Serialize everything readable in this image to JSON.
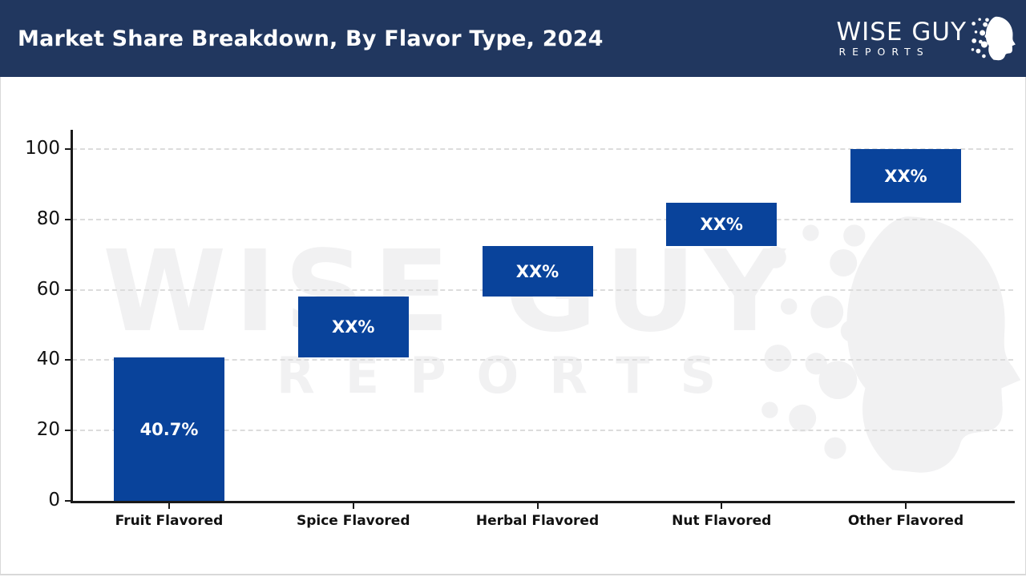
{
  "header": {
    "title": "Market Share Breakdown, By Flavor Type, 2024",
    "bg_color": "#21375f"
  },
  "logo": {
    "line1": "WISE GUY",
    "line2": "REPORTS"
  },
  "watermark": {
    "line1": "WISE GUY",
    "line2": "REPORTS"
  },
  "chart_data": {
    "type": "bar",
    "variant": "floating-waterfall",
    "title": "Market Share Breakdown, By Flavor Type, 2024",
    "categories": [
      "Fruit Flavored",
      "Spice Flavored",
      "Herbal Flavored",
      "Nut Flavored",
      "Other Flavored"
    ],
    "segments": [
      {
        "category": "Fruit Flavored",
        "start": 0,
        "end": 40.7,
        "label": "40.7%"
      },
      {
        "category": "Spice Flavored",
        "start": 40.7,
        "end": 58,
        "label": "XX%"
      },
      {
        "category": "Herbal Flavored",
        "start": 58,
        "end": 72.5,
        "label": "XX%"
      },
      {
        "category": "Nut Flavored",
        "start": 72.5,
        "end": 84.7,
        "label": "XX%"
      },
      {
        "category": "Other Flavored",
        "start": 84.7,
        "end": 100,
        "label": "XX%"
      }
    ],
    "ylim": [
      0,
      100
    ],
    "yticks": [
      0,
      20,
      40,
      60,
      80,
      100
    ],
    "xlabel": "",
    "ylabel": "",
    "grid": "dashed-horizontal",
    "legend": null,
    "bar_color": "#09439b",
    "bar_label_color": "#ffffff",
    "grid_color": "#dcdcdc",
    "axis_color": "#1a1a1a"
  }
}
